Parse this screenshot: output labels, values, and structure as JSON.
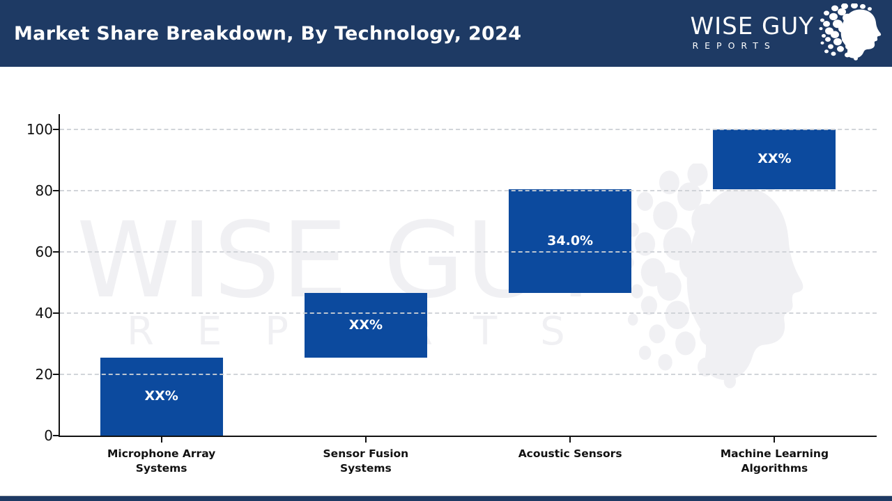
{
  "header": {
    "title": "Market Share Breakdown, By Technology, 2024",
    "logo_line1": "WISE GUY",
    "logo_line2": "REPORTS",
    "bg_color": "#1e3a64"
  },
  "watermark": {
    "line1": "WISE GUY",
    "line2": "REPORTS"
  },
  "colors": {
    "header_navy": "#1e3a64",
    "bar_blue": "#0c4a9e",
    "gridline_gray": "#d0d3d9",
    "watermark_gray": "#f0f0f3",
    "axis_black": "#111111",
    "value_label_white": "#ffffff"
  },
  "chart_data": {
    "type": "bar",
    "subtype": "waterfall",
    "title": "Market Share Breakdown, By Technology, 2024",
    "xlabel": "",
    "ylabel": "",
    "yticks": [
      0,
      20,
      40,
      60,
      80,
      100
    ],
    "ylim": [
      0,
      105
    ],
    "grid": "dashed-horizontal, drawn above bars",
    "legend": "none",
    "bar_color": "#0c4a9e",
    "categories": [
      "Microphone Array Systems",
      "Sensor Fusion Systems",
      "Acoustic Sensors",
      "Machine Learning Algorithms"
    ],
    "segments": [
      {
        "label_lines": [
          "Microphone Array",
          "Systems"
        ],
        "start": 0,
        "end": 25.5,
        "value_label": "XX%"
      },
      {
        "label_lines": [
          "Sensor Fusion",
          "Systems"
        ],
        "start": 25.5,
        "end": 46.5,
        "value_label": "XX%"
      },
      {
        "label_lines": [
          "Acoustic Sensors"
        ],
        "start": 46.5,
        "end": 80.5,
        "value_label": "34.0%"
      },
      {
        "label_lines": [
          "Machine Learning",
          "Algorithms"
        ],
        "start": 80.5,
        "end": 100,
        "value_label": "XX%"
      }
    ]
  }
}
